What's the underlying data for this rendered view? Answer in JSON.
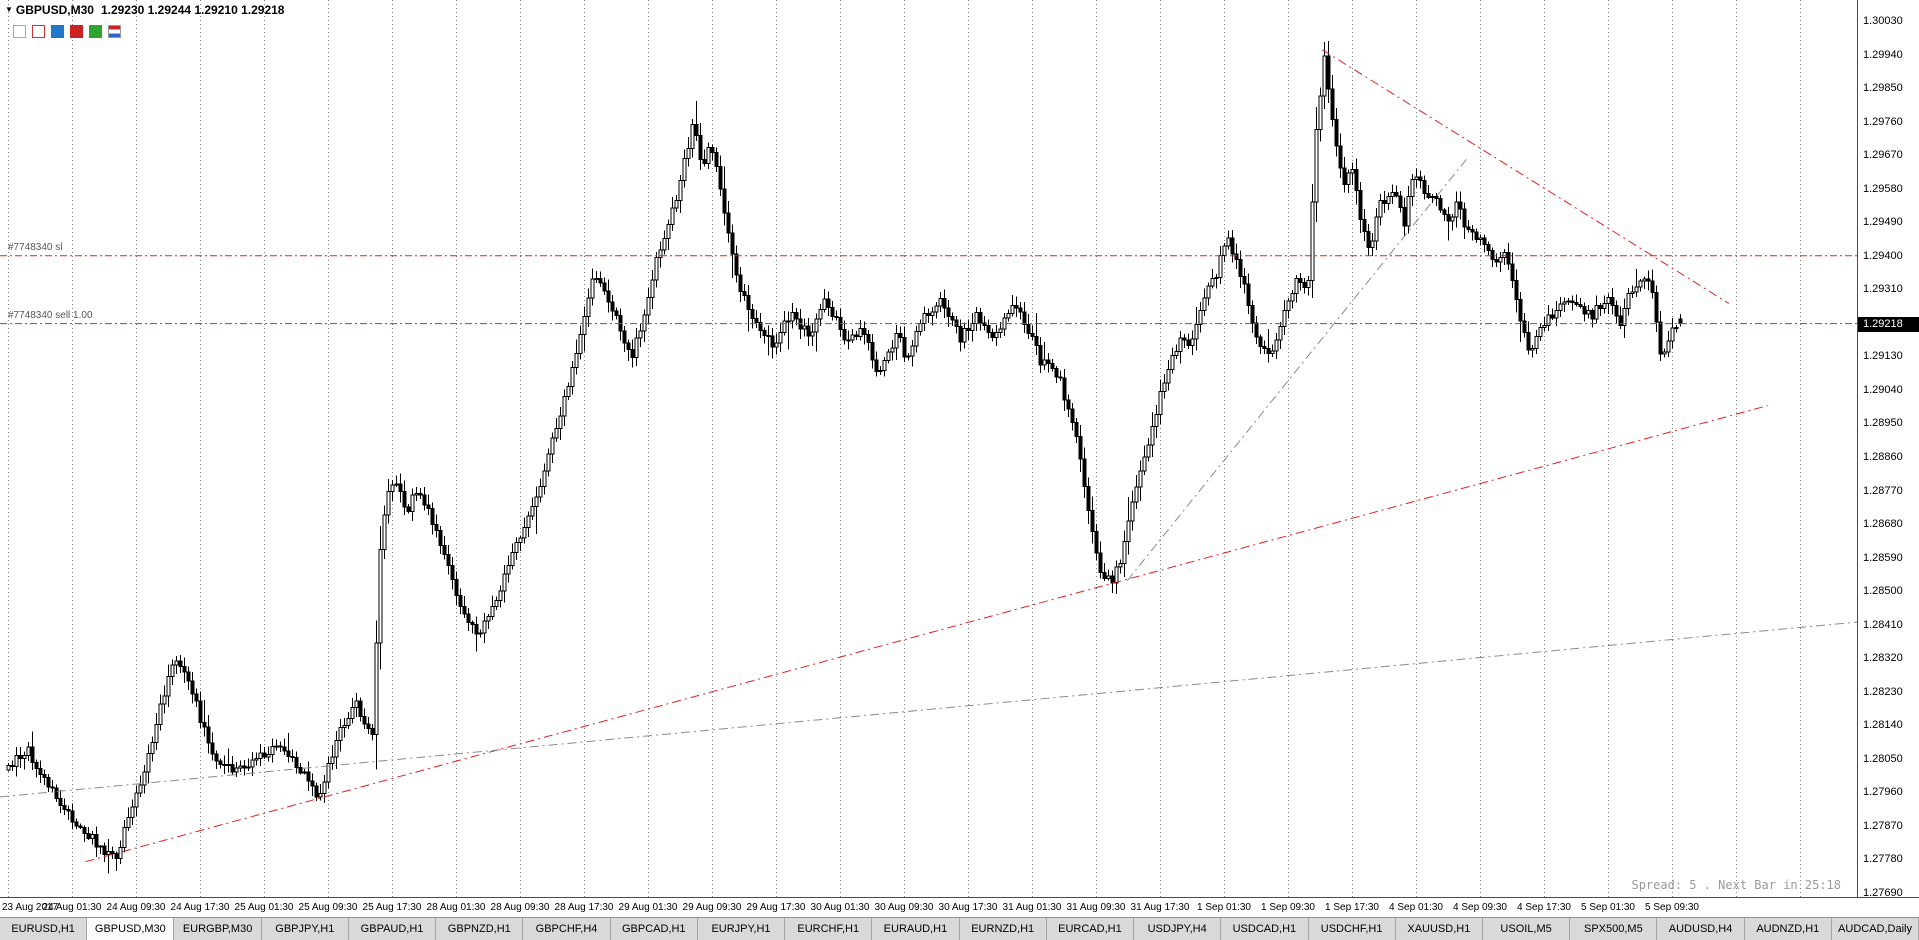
{
  "chart": {
    "title_symbol": "GBPUSD,M30",
    "title_ohlc": "1.29230 1.29244 1.29210 1.29218",
    "status_text": "Spread: 5 . Next Bar in 25:18",
    "object_squares": [
      {
        "name": "object-button-1",
        "type": "outline",
        "color": "#7fb2dd"
      },
      {
        "name": "object-button-2",
        "type": "outline",
        "color": "#cc3333"
      },
      {
        "name": "object-button-3",
        "type": "fill",
        "color": "#2277cc"
      },
      {
        "name": "object-button-4",
        "type": "fill",
        "color": "#cc2222"
      },
      {
        "name": "object-button-5",
        "type": "fill",
        "color": "#2fa52f"
      },
      {
        "name": "object-button-6",
        "type": "flag",
        "colors": [
          "#cc2222",
          "#ffffff",
          "#3366cc"
        ]
      }
    ]
  },
  "order_lines": [
    {
      "label": "#7748340 sl",
      "price": 1.294,
      "color": "#dd2222"
    },
    {
      "label": "#7748340 sell 1.00",
      "price": 1.29218,
      "color": "#1e8c1e"
    }
  ],
  "trend_lines": [
    {
      "name": "ascending-support-trendline",
      "color": "#dd2222",
      "x1": 0.046,
      "p1": 1.27774,
      "x2": 0.952,
      "p2": 1.28998
    },
    {
      "name": "descending-resistance-trendline",
      "color": "#dd2222",
      "x1": 0.712,
      "p1": 1.29953,
      "x2": 0.931,
      "p2": 1.29272
    },
    {
      "name": "gray-long-trendline",
      "color": "#8a8a8a",
      "x1": 0.0,
      "p1": 1.27948,
      "x2": 1.0,
      "p2": 1.28417
    },
    {
      "name": "gray-steep-trendline",
      "color": "#8a8a8a",
      "x1": 0.607,
      "p1": 1.28528,
      "x2": 0.79,
      "p2": 1.29661
    }
  ],
  "price_axis": {
    "current_badge": "1.29218",
    "current_price": 1.29218,
    "labels": [
      "1.30030",
      "1.29940",
      "1.29850",
      "1.29760",
      "1.29670",
      "1.29580",
      "1.29490",
      "1.29400",
      "1.29310",
      "1.29220",
      "1.29130",
      "1.29040",
      "1.28950",
      "1.28860",
      "1.28770",
      "1.28680",
      "1.28590",
      "1.28500",
      "1.28410",
      "1.28320",
      "1.28230",
      "1.28140",
      "1.28050",
      "1.27960",
      "1.27870",
      "1.27780",
      "1.27690"
    ]
  },
  "time_axis": {
    "labels": [
      "23 Aug 2017",
      "24 Aug 01:30",
      "24 Aug 09:30",
      "24 Aug 17:30",
      "25 Aug 01:30",
      "25 Aug 09:30",
      "25 Aug 17:30",
      "28 Aug 01:30",
      "28 Aug 09:30",
      "28 Aug 17:30",
      "29 Aug 01:30",
      "29 Aug 09:30",
      "29 Aug 17:30",
      "30 Aug 01:30",
      "30 Aug 09:30",
      "30 Aug 17:30",
      "31 Aug 01:30",
      "31 Aug 09:30",
      "31 Aug 17:30",
      "1 Sep 01:30",
      "1 Sep 09:30",
      "1 Sep 17:30",
      "4 Sep 01:30",
      "4 Sep 09:30",
      "4 Sep 17:30",
      "5 Sep 01:30",
      "5 Sep 09:30"
    ]
  },
  "chart_data": {
    "type": "candlestick",
    "symbol": "GBPUSD",
    "timeframe": "M30",
    "open": "1.29230",
    "high": "1.29244",
    "low": "1.29210",
    "close": "1.29218",
    "bars": 419,
    "price_range": [
      1.2769,
      1.3003
    ],
    "grid": "vertical-dotted",
    "price_path": [
      [
        0.0,
        1.2802
      ],
      [
        0.011,
        1.2808
      ],
      [
        0.021,
        1.28
      ],
      [
        0.037,
        1.279
      ],
      [
        0.053,
        1.2782
      ],
      [
        0.064,
        1.2778
      ],
      [
        0.08,
        1.28
      ],
      [
        0.096,
        1.2828
      ],
      [
        0.101,
        1.2832
      ],
      [
        0.112,
        1.282
      ],
      [
        0.122,
        1.2805
      ],
      [
        0.138,
        1.2802
      ],
      [
        0.16,
        1.2808
      ],
      [
        0.176,
        1.2802
      ],
      [
        0.186,
        1.2794
      ],
      [
        0.197,
        1.2812
      ],
      [
        0.207,
        1.282
      ],
      [
        0.218,
        1.2812
      ],
      [
        0.223,
        1.2868
      ],
      [
        0.229,
        1.288
      ],
      [
        0.239,
        1.2872
      ],
      [
        0.245,
        1.2878
      ],
      [
        0.261,
        1.286
      ],
      [
        0.271,
        1.2845
      ],
      [
        0.282,
        1.2838
      ],
      [
        0.298,
        1.2855
      ],
      [
        0.309,
        1.2868
      ],
      [
        0.319,
        1.288
      ],
      [
        0.335,
        1.2905
      ],
      [
        0.346,
        1.2928
      ],
      [
        0.351,
        1.2935
      ],
      [
        0.362,
        1.2925
      ],
      [
        0.372,
        1.2912
      ],
      [
        0.378,
        1.292
      ],
      [
        0.388,
        1.294
      ],
      [
        0.399,
        1.2955
      ],
      [
        0.41,
        1.2976
      ],
      [
        0.415,
        1.2962
      ],
      [
        0.42,
        1.297
      ],
      [
        0.426,
        1.2958
      ],
      [
        0.436,
        1.2933
      ],
      [
        0.447,
        1.2922
      ],
      [
        0.457,
        1.2916
      ],
      [
        0.468,
        1.2925
      ],
      [
        0.479,
        1.2918
      ],
      [
        0.489,
        1.2928
      ],
      [
        0.5,
        1.2918
      ],
      [
        0.511,
        1.292
      ],
      [
        0.521,
        1.2908
      ],
      [
        0.532,
        1.292
      ],
      [
        0.537,
        1.2912
      ],
      [
        0.548,
        1.2924
      ],
      [
        0.559,
        1.2928
      ],
      [
        0.569,
        1.2918
      ],
      [
        0.58,
        1.2924
      ],
      [
        0.59,
        1.2918
      ],
      [
        0.601,
        1.2927
      ],
      [
        0.612,
        1.2918
      ],
      [
        0.617,
        1.2912
      ],
      [
        0.628,
        1.2908
      ],
      [
        0.638,
        1.2893
      ],
      [
        0.644,
        1.2878
      ],
      [
        0.649,
        1.2863
      ],
      [
        0.654,
        1.2854
      ],
      [
        0.66,
        1.2852
      ],
      [
        0.665,
        1.2858
      ],
      [
        0.67,
        1.287
      ],
      [
        0.681,
        1.2888
      ],
      [
        0.691,
        1.2906
      ],
      [
        0.702,
        1.292
      ],
      [
        0.707,
        1.2914
      ],
      [
        0.713,
        1.2926
      ],
      [
        0.723,
        1.2936
      ],
      [
        0.729,
        1.2945
      ],
      [
        0.739,
        1.2933
      ],
      [
        0.745,
        1.2919
      ],
      [
        0.755,
        1.2912
      ],
      [
        0.766,
        1.2928
      ],
      [
        0.771,
        1.2934
      ],
      [
        0.777,
        1.293
      ],
      [
        0.782,
        1.2972
      ],
      [
        0.787,
        1.2993
      ],
      [
        0.793,
        1.2974
      ],
      [
        0.798,
        1.2958
      ],
      [
        0.803,
        1.2964
      ],
      [
        0.809,
        1.295
      ],
      [
        0.814,
        1.294
      ],
      [
        0.819,
        1.2953
      ],
      [
        0.83,
        1.2957
      ],
      [
        0.835,
        1.2949
      ],
      [
        0.84,
        1.2961
      ],
      [
        0.851,
        1.2956
      ],
      [
        0.862,
        1.295
      ],
      [
        0.867,
        1.2954
      ],
      [
        0.872,
        1.2947
      ],
      [
        0.883,
        1.2944
      ],
      [
        0.888,
        1.2939
      ],
      [
        0.894,
        1.2941
      ],
      [
        0.899,
        1.2934
      ],
      [
        0.904,
        1.2924
      ],
      [
        0.91,
        1.2914
      ],
      [
        0.915,
        1.292
      ],
      [
        0.926,
        1.2925
      ],
      [
        0.936,
        1.2928
      ],
      [
        0.947,
        1.2924
      ],
      [
        0.957,
        1.293
      ],
      [
        0.963,
        1.2921
      ],
      [
        0.968,
        1.2928
      ],
      [
        0.979,
        1.2934
      ],
      [
        0.984,
        1.2929
      ],
      [
        0.989,
        1.2911
      ],
      [
        0.995,
        1.2921
      ],
      [
        1.0,
        1.29218
      ]
    ]
  },
  "tabs": {
    "active": "GBPUSD,M30",
    "items": [
      "EURUSD,H1",
      "GBPUSD,M30",
      "EURGBP,M30",
      "GBPJPY,H1",
      "GBPAUD,H1",
      "GBPNZD,H1",
      "GBPCHF,H4",
      "GBPCAD,H1",
      "EURJPY,H1",
      "EURCHF,H1",
      "EURAUD,H1",
      "EURNZD,H1",
      "EURCAD,H1",
      "USDJPY,H4",
      "USDCAD,H1",
      "USDCHF,H1",
      "XAUUSD,H1",
      "USOIL,M5",
      "SPX500,M5",
      "AUDUSD,H4",
      "AUDNZD,H1",
      "AUDCAD,Daily"
    ]
  }
}
